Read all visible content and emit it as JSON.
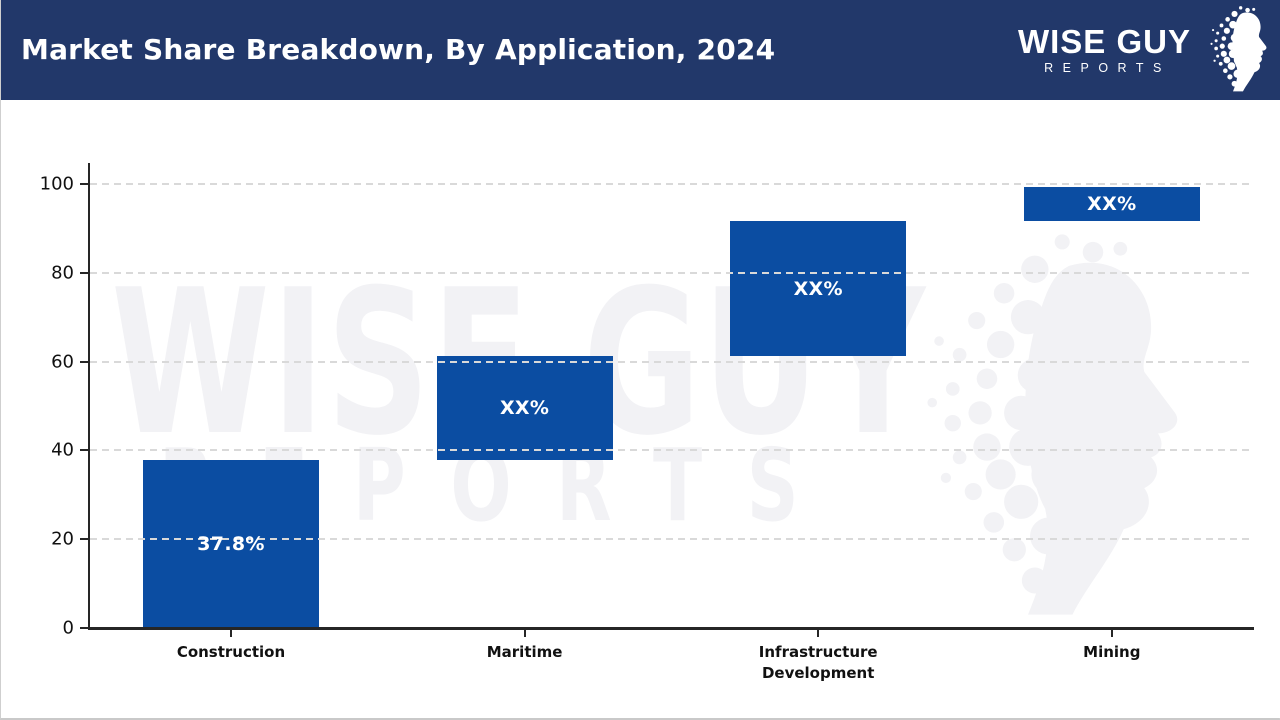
{
  "header": {
    "title": "Market Share Breakdown, By Application, 2024",
    "background_color": "#22386a",
    "logo": {
      "brand": "WISE GUY",
      "sub": "REPORTS",
      "icon": "dotted-face-profile"
    }
  },
  "watermark": {
    "brand": "WISE GUY",
    "sub": "REPORTS",
    "icon": "dotted-face-profile"
  },
  "chart_data": {
    "type": "bar",
    "subtype": "waterfall",
    "title": "Market Share Breakdown, By Application, 2024",
    "xlabel": "",
    "ylabel": "",
    "unit": "%",
    "ylim": [
      0,
      105
    ],
    "y_ticks": [
      0,
      20,
      40,
      60,
      80,
      100
    ],
    "grid": "horizontal-dashed",
    "legend": "none",
    "bar_color": "#0b4da2",
    "categories": [
      "Construction",
      "Maritime",
      "Infrastructure Development",
      "Mining"
    ],
    "categories_display": [
      [
        "Construction"
      ],
      [
        "Maritime"
      ],
      [
        "Infrastructure",
        "Development"
      ],
      [
        "Mining"
      ]
    ],
    "segments": [
      {
        "category": "Construction",
        "start": 0,
        "end": 37.8,
        "label": "37.8%"
      },
      {
        "category": "Maritime",
        "start": 37.8,
        "end": 61.2,
        "label": "XX%"
      },
      {
        "category": "Infrastructure Development",
        "start": 61.2,
        "end": 91.7,
        "label": "XX%"
      },
      {
        "category": "Mining",
        "start": 91.7,
        "end": 99.3,
        "label": "XX%"
      }
    ]
  },
  "colors": {
    "header_bg": "#22386a",
    "bar_blue": "#0b4da2",
    "gridline": "#d9d9d9",
    "axis": "#262626",
    "watermark": "#f2f2f5",
    "text_dark": "#111111",
    "text_light": "#ffffff"
  }
}
